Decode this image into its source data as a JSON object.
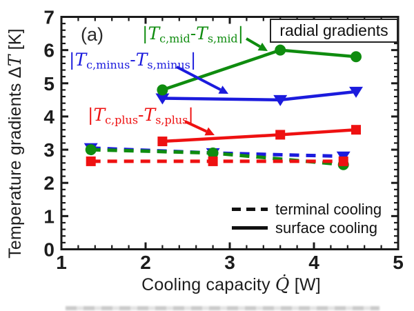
{
  "panel_label": "(a)",
  "box_label": "radial gradients",
  "colors": {
    "mid": "#0f8c0f",
    "minus": "#1b1bdd",
    "plus": "#ee1111",
    "axis": "#1a1a1a"
  },
  "axes": {
    "x": {
      "label_pre": "Cooling capacity ",
      "label_math": "Q̇",
      "label_post": " [W]",
      "ticks": [
        "1",
        "2",
        "3",
        "4",
        "5"
      ],
      "minor_step": 0.2
    },
    "y": {
      "label_pre": "Temperature gradients Δ",
      "label_math": "T",
      "label_post": " [K]",
      "ticks": [
        "0",
        "1",
        "2",
        "3",
        "4",
        "5",
        "6",
        "7"
      ],
      "minor_step": 0.2
    }
  },
  "series_labels": {
    "mid": {
      "open": "|",
      "t1": "T",
      "s1": "c,mid",
      "sep": "-",
      "t2": "T",
      "s2": "s,mid",
      "close": "|"
    },
    "minus": {
      "open": "|",
      "t1": "T",
      "s1": "c,minus",
      "sep": "-",
      "t2": "T",
      "s2": "s,minus",
      "close": "|"
    },
    "plus": {
      "open": "|",
      "t1": "T",
      "s1": "c,plus",
      "sep": "-",
      "t2": "T",
      "s2": "s,plus",
      "close": "|"
    }
  },
  "legend": {
    "dashed": "terminal cooling",
    "solid": "surface cooling"
  },
  "chart_data": {
    "type": "line",
    "title": "",
    "xlabel": "Cooling capacity Q̇ [W]",
    "ylabel": "Temperature gradients ΔT [K]",
    "xlim": [
      1,
      5
    ],
    "ylim": [
      0,
      7
    ],
    "grid": false,
    "legend_position": "lower right",
    "annotation_box": "radial gradients",
    "series": [
      {
        "name": "|Tc,minus-Ts,minus| terminal cooling",
        "color_key": "minus",
        "style": "dashed",
        "marker": "triangle-down",
        "x": [
          1.35,
          2.8,
          4.35
        ],
        "y": [
          3.05,
          2.9,
          2.8
        ]
      },
      {
        "name": "|Tc,mid-Ts,mid| terminal cooling",
        "color_key": "mid",
        "style": "dashed",
        "marker": "circle",
        "x": [
          1.35,
          2.8,
          4.35
        ],
        "y": [
          3.0,
          2.9,
          2.55
        ]
      },
      {
        "name": "|Tc,plus-Ts,plus| terminal cooling",
        "color_key": "plus",
        "style": "dashed",
        "marker": "square",
        "x": [
          1.35,
          2.8,
          4.35
        ],
        "y": [
          2.65,
          2.65,
          2.65
        ]
      },
      {
        "name": "|Tc,plus-Ts,plus| surface cooling",
        "color_key": "plus",
        "style": "solid",
        "marker": "square",
        "x": [
          2.2,
          3.6,
          4.5
        ],
        "y": [
          3.25,
          3.45,
          3.6
        ]
      },
      {
        "name": "|Tc,minus-Ts,minus| surface cooling",
        "color_key": "minus",
        "style": "solid",
        "marker": "triangle-down",
        "x": [
          2.2,
          3.6,
          4.5
        ],
        "y": [
          4.55,
          4.5,
          4.75
        ]
      },
      {
        "name": "|Tc,mid-Ts,mid| surface cooling",
        "color_key": "mid",
        "style": "solid",
        "marker": "circle",
        "x": [
          2.2,
          3.6,
          4.5
        ],
        "y": [
          4.8,
          6.0,
          5.8
        ]
      }
    ]
  }
}
